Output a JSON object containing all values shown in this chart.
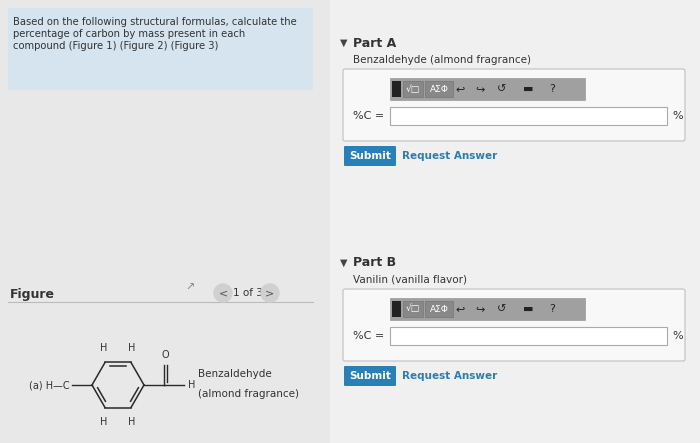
{
  "bg_color": "#e8e8e8",
  "left_panel_bg": "#d5e4ef",
  "problem_text_line1": "Based on the following structural formulas, calculate the",
  "problem_text_line2": "percentage of carbon by mass present in each",
  "problem_text_line3": "compound (Figure 1) (Figure 2) (Figure 3)",
  "figure_label": "Figure",
  "nav_text": "1 of 3",
  "benzaldehyde_caption_line1": "Benzaldehyde",
  "benzaldehyde_caption_line2": "(almond fragrance)",
  "part_a_label": "Part A",
  "part_a_subtitle": "Benzaldehyde (almond fragrance)",
  "part_b_label": "Part B",
  "part_b_subtitle": "Vanilin (vanilla flavor)",
  "percent_c_label": "%C =",
  "percent_label": "%",
  "submit_text": "Submit",
  "request_text": "Request Answer",
  "submit_color": "#2980b9",
  "submit_text_color": "#ffffff",
  "toolbar_bg": "#9e9e9e",
  "sqrt_bg": "#7a7a7a",
  "asf_bg": "#7a7a7a",
  "input_bg": "#ffffff",
  "box_bg": "#f0f0f0",
  "box_border": "#c0c0c0",
  "text_color": "#333333",
  "link_color": "#2c7db5",
  "gray_light": "#f2f2f2",
  "divider_color": "#bbbbbb"
}
